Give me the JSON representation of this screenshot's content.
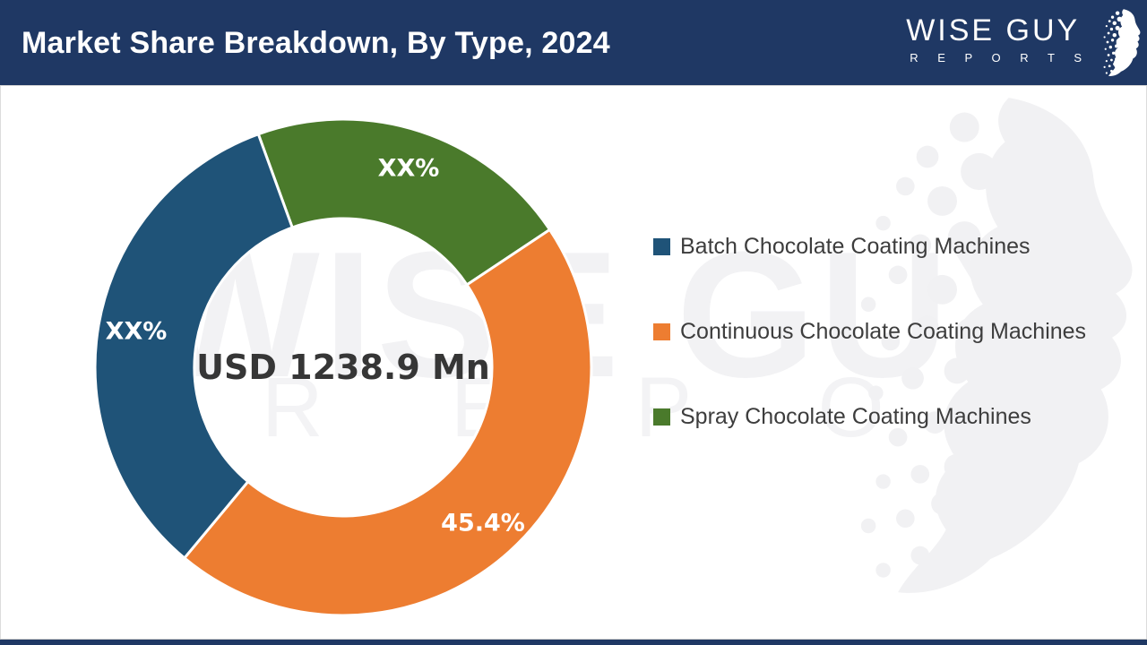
{
  "header": {
    "title": "Market Share Breakdown, By Type, 2024",
    "brand": {
      "name_line": "WISE GUY",
      "reports_line": "R E P O R T S"
    }
  },
  "watermark": {
    "name_line": "WISE GUY",
    "reports_line": "R E P O R T S"
  },
  "chart_data": {
    "type": "donut",
    "title": "Market Share Breakdown, By Type, 2024",
    "center_label": "USD 1238.9 Mn",
    "legend_position": "right",
    "start_angle_deg": -20,
    "slices": [
      {
        "label": "Batch Chocolate Coating Machines",
        "display_value": "XX%",
        "est_share_pct": 33.4,
        "color": "#1F5378"
      },
      {
        "label": "Continuous Chocolate Coating Machines",
        "display_value": "45.4%",
        "est_share_pct": 45.4,
        "color": "#ED7D31"
      },
      {
        "label": "Spray Chocolate Coating Machines",
        "display_value": "XX%",
        "est_share_pct": 21.2,
        "color": "#4A7A2B"
      }
    ]
  },
  "colors": {
    "header_bg": "#1F3864",
    "footer_bg": "#1F3864",
    "center_text": "#363636",
    "legend_text": "#3D3D3D",
    "slice_label_text": "#FFFFFF",
    "watermark": "#F2F2F4"
  }
}
